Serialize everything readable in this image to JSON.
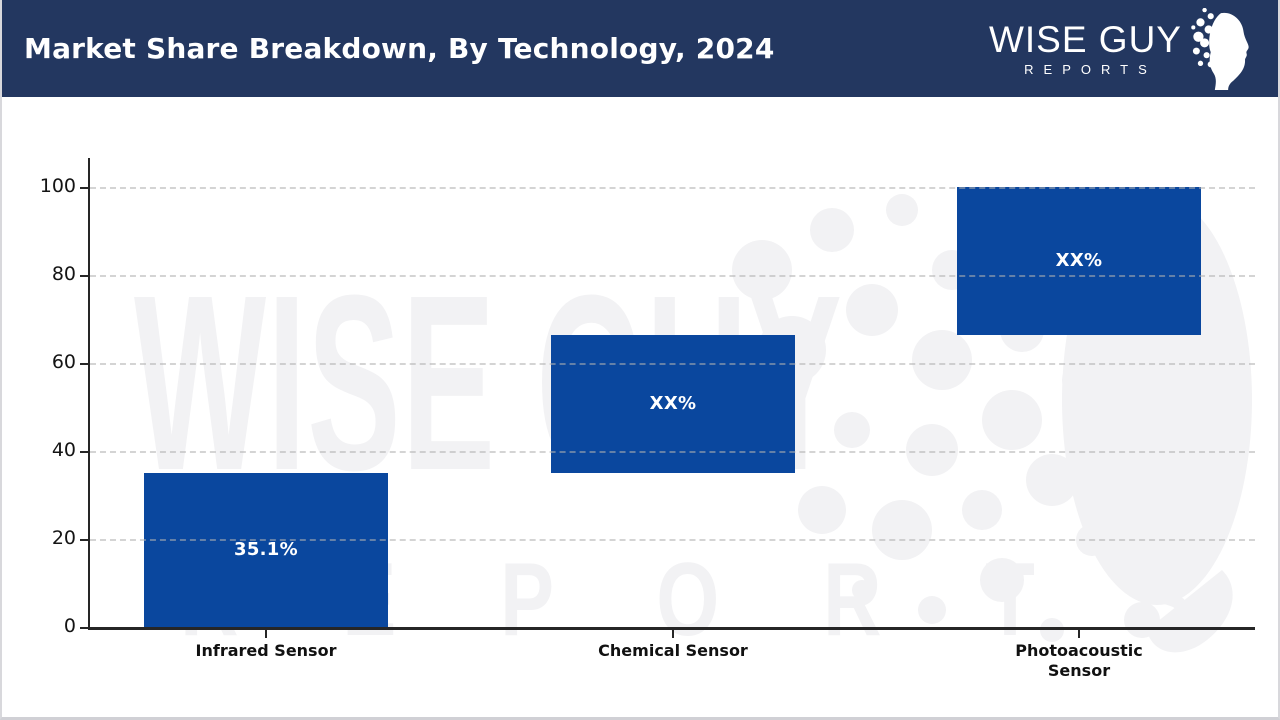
{
  "header": {
    "title": "Market Share Breakdown, By Technology, 2024",
    "bg_color": "#233760",
    "logo": {
      "line1": "WISE GUY",
      "line2": "REPORTS",
      "icon": "dotted-head-profile"
    }
  },
  "watermark": {
    "line1": "WISE GUY",
    "line2": "R E P O R T S",
    "icon": "dotted-head-profile",
    "color": "#f2f2f4"
  },
  "chart_data": {
    "type": "bar",
    "subtype": "waterfall-floating-bars",
    "title": "Market Share Breakdown, By Technology, 2024",
    "xlabel": "",
    "ylabel": "",
    "categories": [
      "Infrared Sensor",
      "Chemical Sensor",
      "Photoacoustic Sensor"
    ],
    "segments": [
      {
        "category": "Infrared Sensor",
        "start": 0,
        "end": 35.1,
        "label": "35.1%"
      },
      {
        "category": "Chemical Sensor",
        "start": 35.1,
        "end": 66.4,
        "label": "XX%"
      },
      {
        "category": "Photoacoustic Sensor",
        "start": 66.4,
        "end": 100,
        "label": "XX%"
      }
    ],
    "yticks": [
      0,
      20,
      40,
      60,
      80,
      100
    ],
    "ylim": [
      0,
      106.8
    ],
    "grid": "horizontal dashed, drawn over bars",
    "legend": "none",
    "bar_color": "#0a479e",
    "bar_label_color": "#ffffff",
    "axis_color": "#262626",
    "grid_color": "#b0b0b0"
  }
}
